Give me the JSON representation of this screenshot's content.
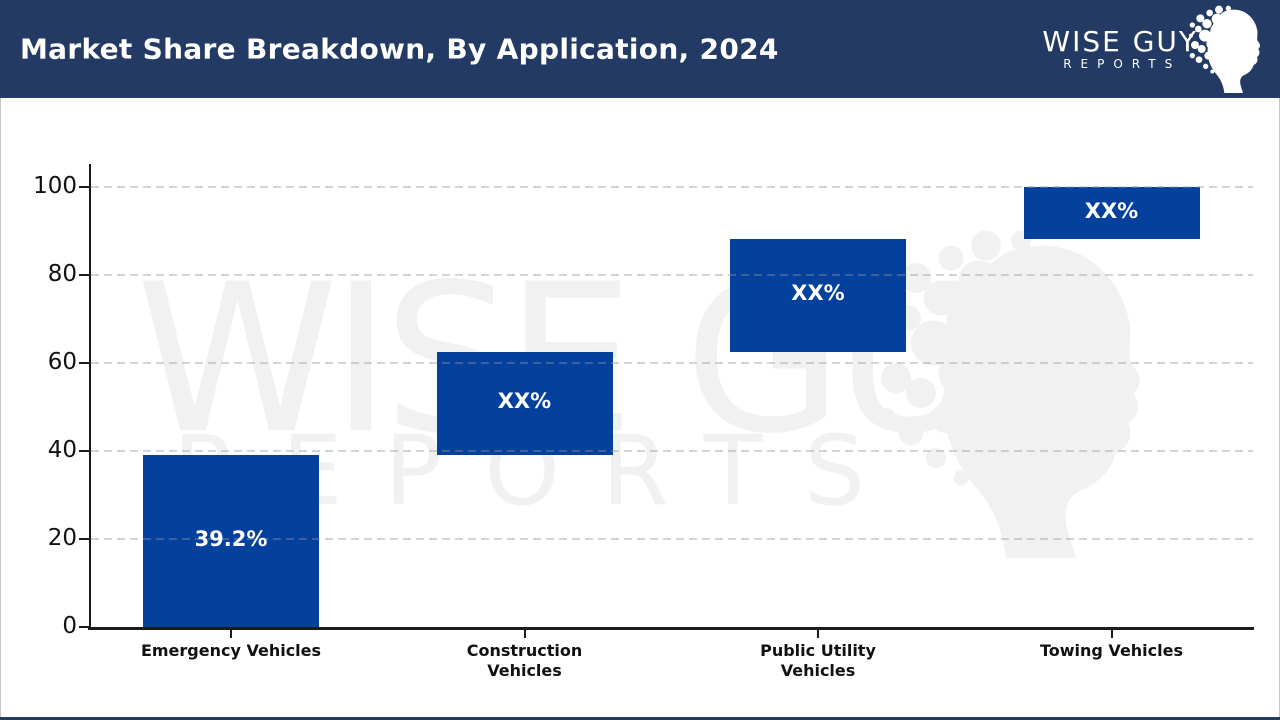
{
  "header": {
    "title": "Market Share Breakdown, By Application, 2024",
    "logo": {
      "line1": "WISE GUY",
      "line2": "REPORTS"
    }
  },
  "watermark": {
    "line1": "WISE GUY",
    "line2": "REPORTS"
  },
  "colors": {
    "header_bg": "#233A64",
    "bar": "#04419C",
    "bar_label": "#FFFFFF",
    "axis": "#1C1C1C",
    "tick_label": "#111111",
    "gridline": "rgba(150,150,150,0.4)",
    "watermark": "#F1F1F2"
  },
  "chart_data": {
    "type": "bar",
    "subtype": "waterfall",
    "title": "Market Share Breakdown, By Application, 2024",
    "xlabel": "",
    "ylabel": "",
    "ylim": [
      0,
      105
    ],
    "yticks": [
      0,
      20,
      40,
      60,
      80,
      100
    ],
    "grid": "horizontal-dashed",
    "legend": "none",
    "bar_color": "#04419C",
    "categories": [
      "Emergency Vehicles",
      "Construction Vehicles",
      "Public Utility Vehicles",
      "Towing Vehicles"
    ],
    "category_label_lines": [
      [
        "Emergency Vehicles"
      ],
      [
        "Construction",
        "Vehicles"
      ],
      [
        "Public Utility",
        "Vehicles"
      ],
      [
        "Towing Vehicles"
      ]
    ],
    "segments": [
      {
        "category": "Emergency Vehicles",
        "start": 0,
        "end": 39.2,
        "value_label": "39.2%"
      },
      {
        "category": "Construction Vehicles",
        "start": 39.2,
        "end": 62.6,
        "value_label": "XX%"
      },
      {
        "category": "Public Utility Vehicles",
        "start": 62.6,
        "end": 88.2,
        "value_label": "XX%"
      },
      {
        "category": "Towing Vehicles",
        "start": 88.2,
        "end": 100,
        "value_label": "XX%"
      }
    ]
  }
}
